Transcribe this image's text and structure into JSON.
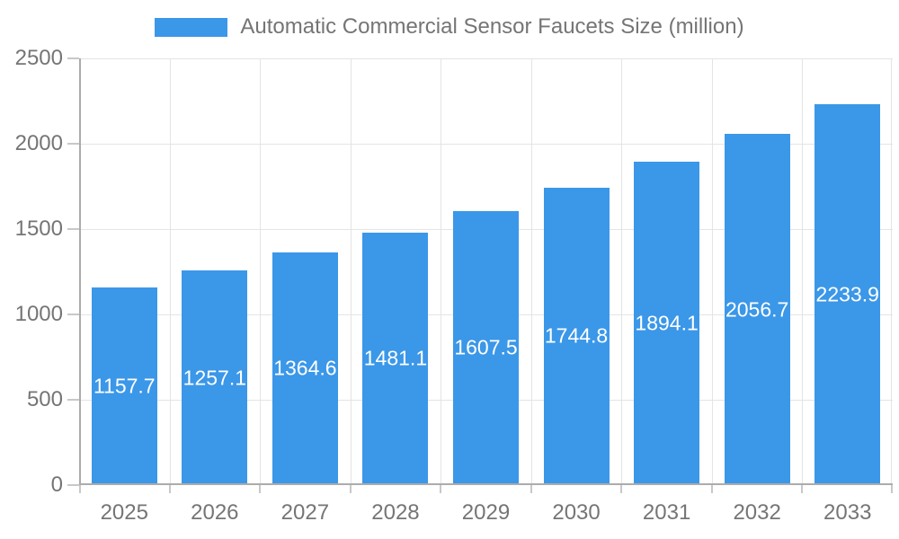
{
  "legend": {
    "series_label": "Automatic Commercial Sensor Faucets Size (million)"
  },
  "chart_data": {
    "type": "bar",
    "title": "Automatic Commercial Sensor Faucets Size (million)",
    "categories": [
      "2025",
      "2026",
      "2027",
      "2028",
      "2029",
      "2030",
      "2031",
      "2032",
      "2033"
    ],
    "values": [
      1157.7,
      1257.1,
      1364.6,
      1481.1,
      1607.5,
      1744.8,
      1894.1,
      2056.7,
      2233.9
    ],
    "xlabel": "",
    "ylabel": "",
    "ylim": [
      0,
      2500
    ],
    "yticks": [
      0,
      500,
      1000,
      1500,
      2000,
      2500
    ],
    "grid": true,
    "legend_position": "top",
    "colors": {
      "bar": "#3b97e8",
      "value_label": "#ffffff",
      "axis_text": "#757575",
      "gridline": "#e4e4e4",
      "axis_line": "#acacac",
      "tick_mark": "#c8c8c8",
      "background": "#ffffff"
    }
  }
}
